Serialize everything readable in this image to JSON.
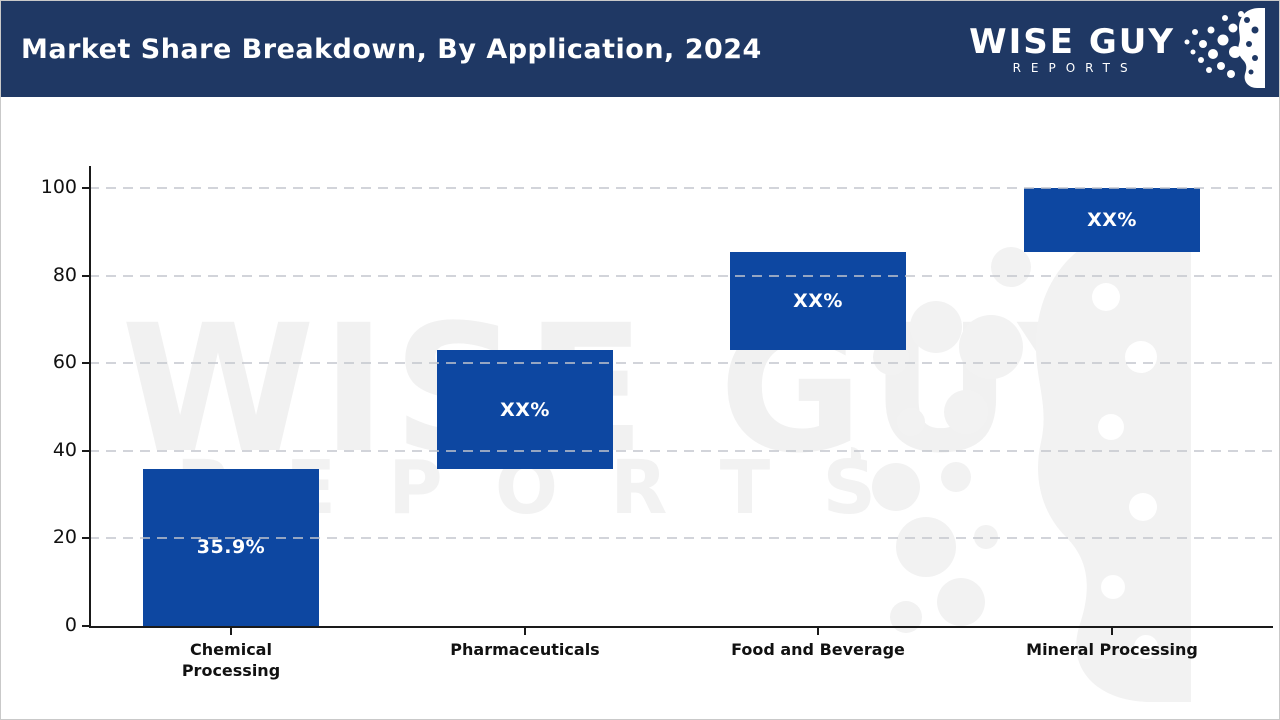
{
  "header": {
    "title": "Market Share Breakdown, By Application, 2024",
    "brand": {
      "line1": "WISE GUY",
      "line2": "REPORTS"
    }
  },
  "watermark": {
    "line1": "WISE GUY",
    "letters": [
      "R",
      "E",
      "P",
      "O",
      "R",
      "T",
      "S"
    ]
  },
  "colors": {
    "header_bg": "#1f3864",
    "bar_fill": "#0d47a1",
    "axis": "#1a1a1a",
    "gridline": "#c3c6cd",
    "watermark": "#f1f1f1",
    "frame_border": "#c9c9c9"
  },
  "chart_data": {
    "type": "bar",
    "subtype": "waterfall",
    "title": "Market Share Breakdown, By Application, 2024",
    "xlabel": "",
    "ylabel": "",
    "categories": [
      "Chemical\nProcessing",
      "Pharmaceuticals",
      "Food and Beverage",
      "Mineral Processing"
    ],
    "segments": [
      {
        "category": "Chemical\nProcessing",
        "start": 0,
        "end": 35.9,
        "label": "35.9%"
      },
      {
        "category": "Pharmaceuticals",
        "start": 35.9,
        "end": 62.9,
        "label": "XX%"
      },
      {
        "category": "Food and Beverage",
        "start": 62.9,
        "end": 85.4,
        "label": "XX%"
      },
      {
        "category": "Mineral Processing",
        "start": 85.5,
        "end": 100,
        "label": "XX%"
      }
    ],
    "yticks": [
      0,
      20,
      40,
      60,
      80,
      100
    ],
    "ylim": [
      0,
      105
    ],
    "grid": "horizontal dashed, drawn above bars",
    "legend": "none"
  }
}
